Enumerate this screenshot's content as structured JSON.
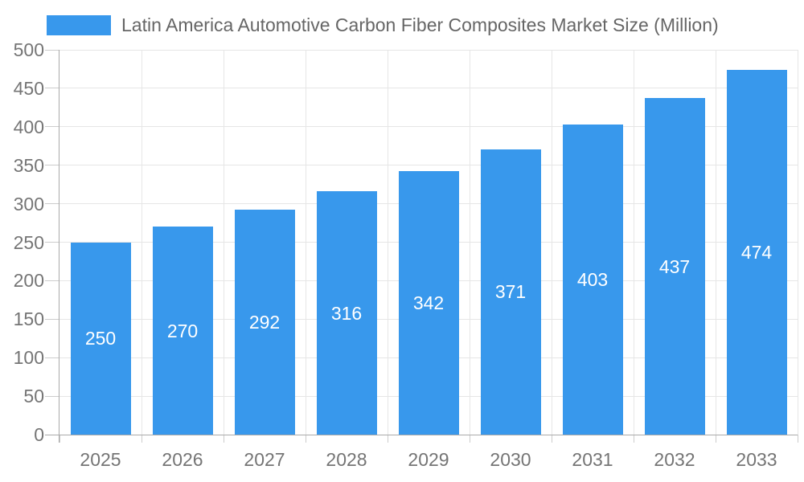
{
  "legend": {
    "label": "Latin America Automotive Carbon Fiber Composites Market Size (Million)"
  },
  "colors": {
    "bar": "#3898EC",
    "axis_line": "#aaaaaa",
    "tick": "#cccccc",
    "grid": "#e6e6e6",
    "axis_label": "#757575",
    "title": "#666666",
    "value_label": "#ffffff",
    "background": "#ffffff"
  },
  "chart_data": {
    "type": "bar",
    "title": "Latin America Automotive Carbon Fiber Composites Market Size (Million)",
    "series_name": "Latin America Automotive Carbon Fiber Composites Market Size (Million)",
    "categories": [
      "2025",
      "2026",
      "2027",
      "2028",
      "2029",
      "2030",
      "2031",
      "2032",
      "2033"
    ],
    "values": [
      250,
      270,
      292,
      316,
      342,
      371,
      403,
      437,
      474
    ],
    "xlabel": "",
    "ylabel": "",
    "ylim": [
      0,
      500
    ],
    "ytick_step": 50,
    "yticks": [
      0,
      50,
      100,
      150,
      200,
      250,
      300,
      350,
      400,
      450,
      500
    ],
    "grid": true,
    "legend_position": "top-left",
    "value_labels": "inside-center"
  }
}
